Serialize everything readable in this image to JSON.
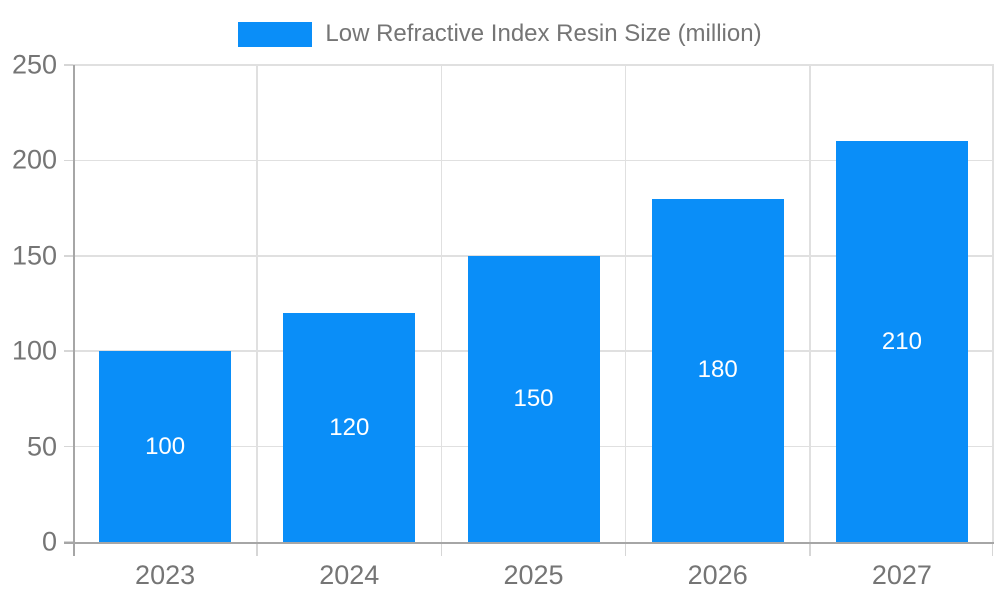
{
  "legend": {
    "label": "Low Refractive Index Resin Size (million)"
  },
  "colors": {
    "bar": "#0a8ef8",
    "bar_label_text": "#ffffff",
    "tick_text": "#757575",
    "legend_text": "#757575",
    "grid_line": "#e0e0e0",
    "tick_mark": "#d6d6d6",
    "axis_line": "#a6a6a6",
    "background": "#ffffff"
  },
  "chart_data": {
    "type": "bar",
    "title": "Low Refractive Index Resin Size (million)",
    "categories": [
      "2023",
      "2024",
      "2025",
      "2026",
      "2027"
    ],
    "series": [
      {
        "name": "Low Refractive Index Resin Size (million)",
        "values": [
          100,
          120,
          150,
          180,
          210
        ]
      }
    ],
    "value_labels_shown": [
      100,
      120,
      150,
      180,
      210
    ],
    "xlabel": "",
    "ylabel": "",
    "ylim": [
      0,
      250
    ],
    "yticks": [
      0,
      50,
      100,
      150,
      200,
      250
    ],
    "grid": true,
    "legend_position": "top-center",
    "value_label_position": "inside-center"
  }
}
